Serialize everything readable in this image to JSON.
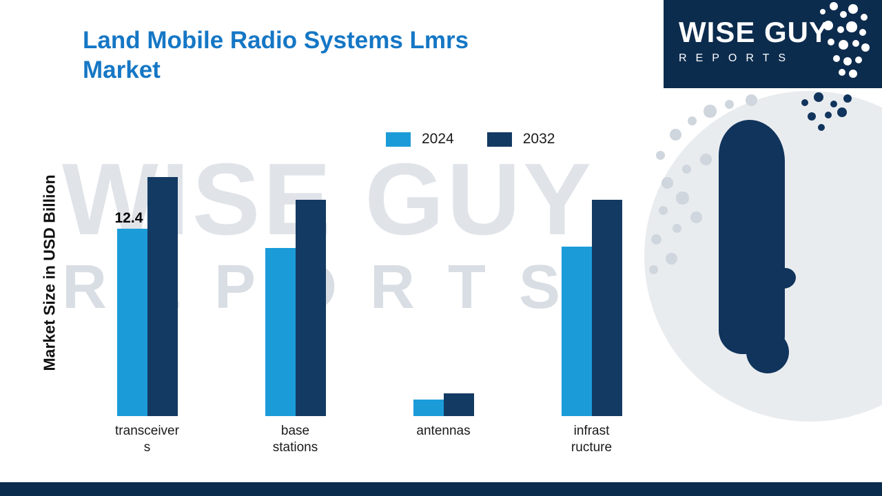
{
  "title": "Land Mobile Radio Systems Lmrs Market",
  "logo": {
    "line1": "WISE GUY",
    "line2": "REPORTS"
  },
  "watermark": {
    "line1": "WISE GUY",
    "line2": "REPORTS"
  },
  "colors": {
    "title_blue": "#1577c5",
    "navy": "#0c2c4e",
    "navy_soft": "#10345c",
    "watermark_gray": "#e0e4e9",
    "watermark_gray2": "#d9dee4",
    "circle_gray": "#e9ecef",
    "dot_gray": "#cfd6dd"
  },
  "chart_data": {
    "type": "bar",
    "title": "Land Mobile Radio Systems Lmrs Market",
    "xlabel": "",
    "ylabel": "Market Size in USD Billion",
    "categories": [
      "transceivers",
      "base stations",
      "antennas",
      "infrastructure"
    ],
    "category_labels": [
      "transceiver\ns",
      "base\nstations",
      "antennas",
      "infrast\nructure"
    ],
    "series": [
      {
        "name": "2024",
        "color": "#1b9cd9",
        "values": [
          12.4,
          11.1,
          1.1,
          11.2
        ]
      },
      {
        "name": "2032",
        "color": "#133a63",
        "values": [
          15.8,
          14.3,
          1.5,
          14.3
        ]
      }
    ],
    "bar_labels": [
      {
        "category_index": 0,
        "series_index": 0,
        "text": "12.4"
      }
    ],
    "ylim": [
      0,
      17.5
    ],
    "grid": false,
    "legend_position": "top"
  }
}
